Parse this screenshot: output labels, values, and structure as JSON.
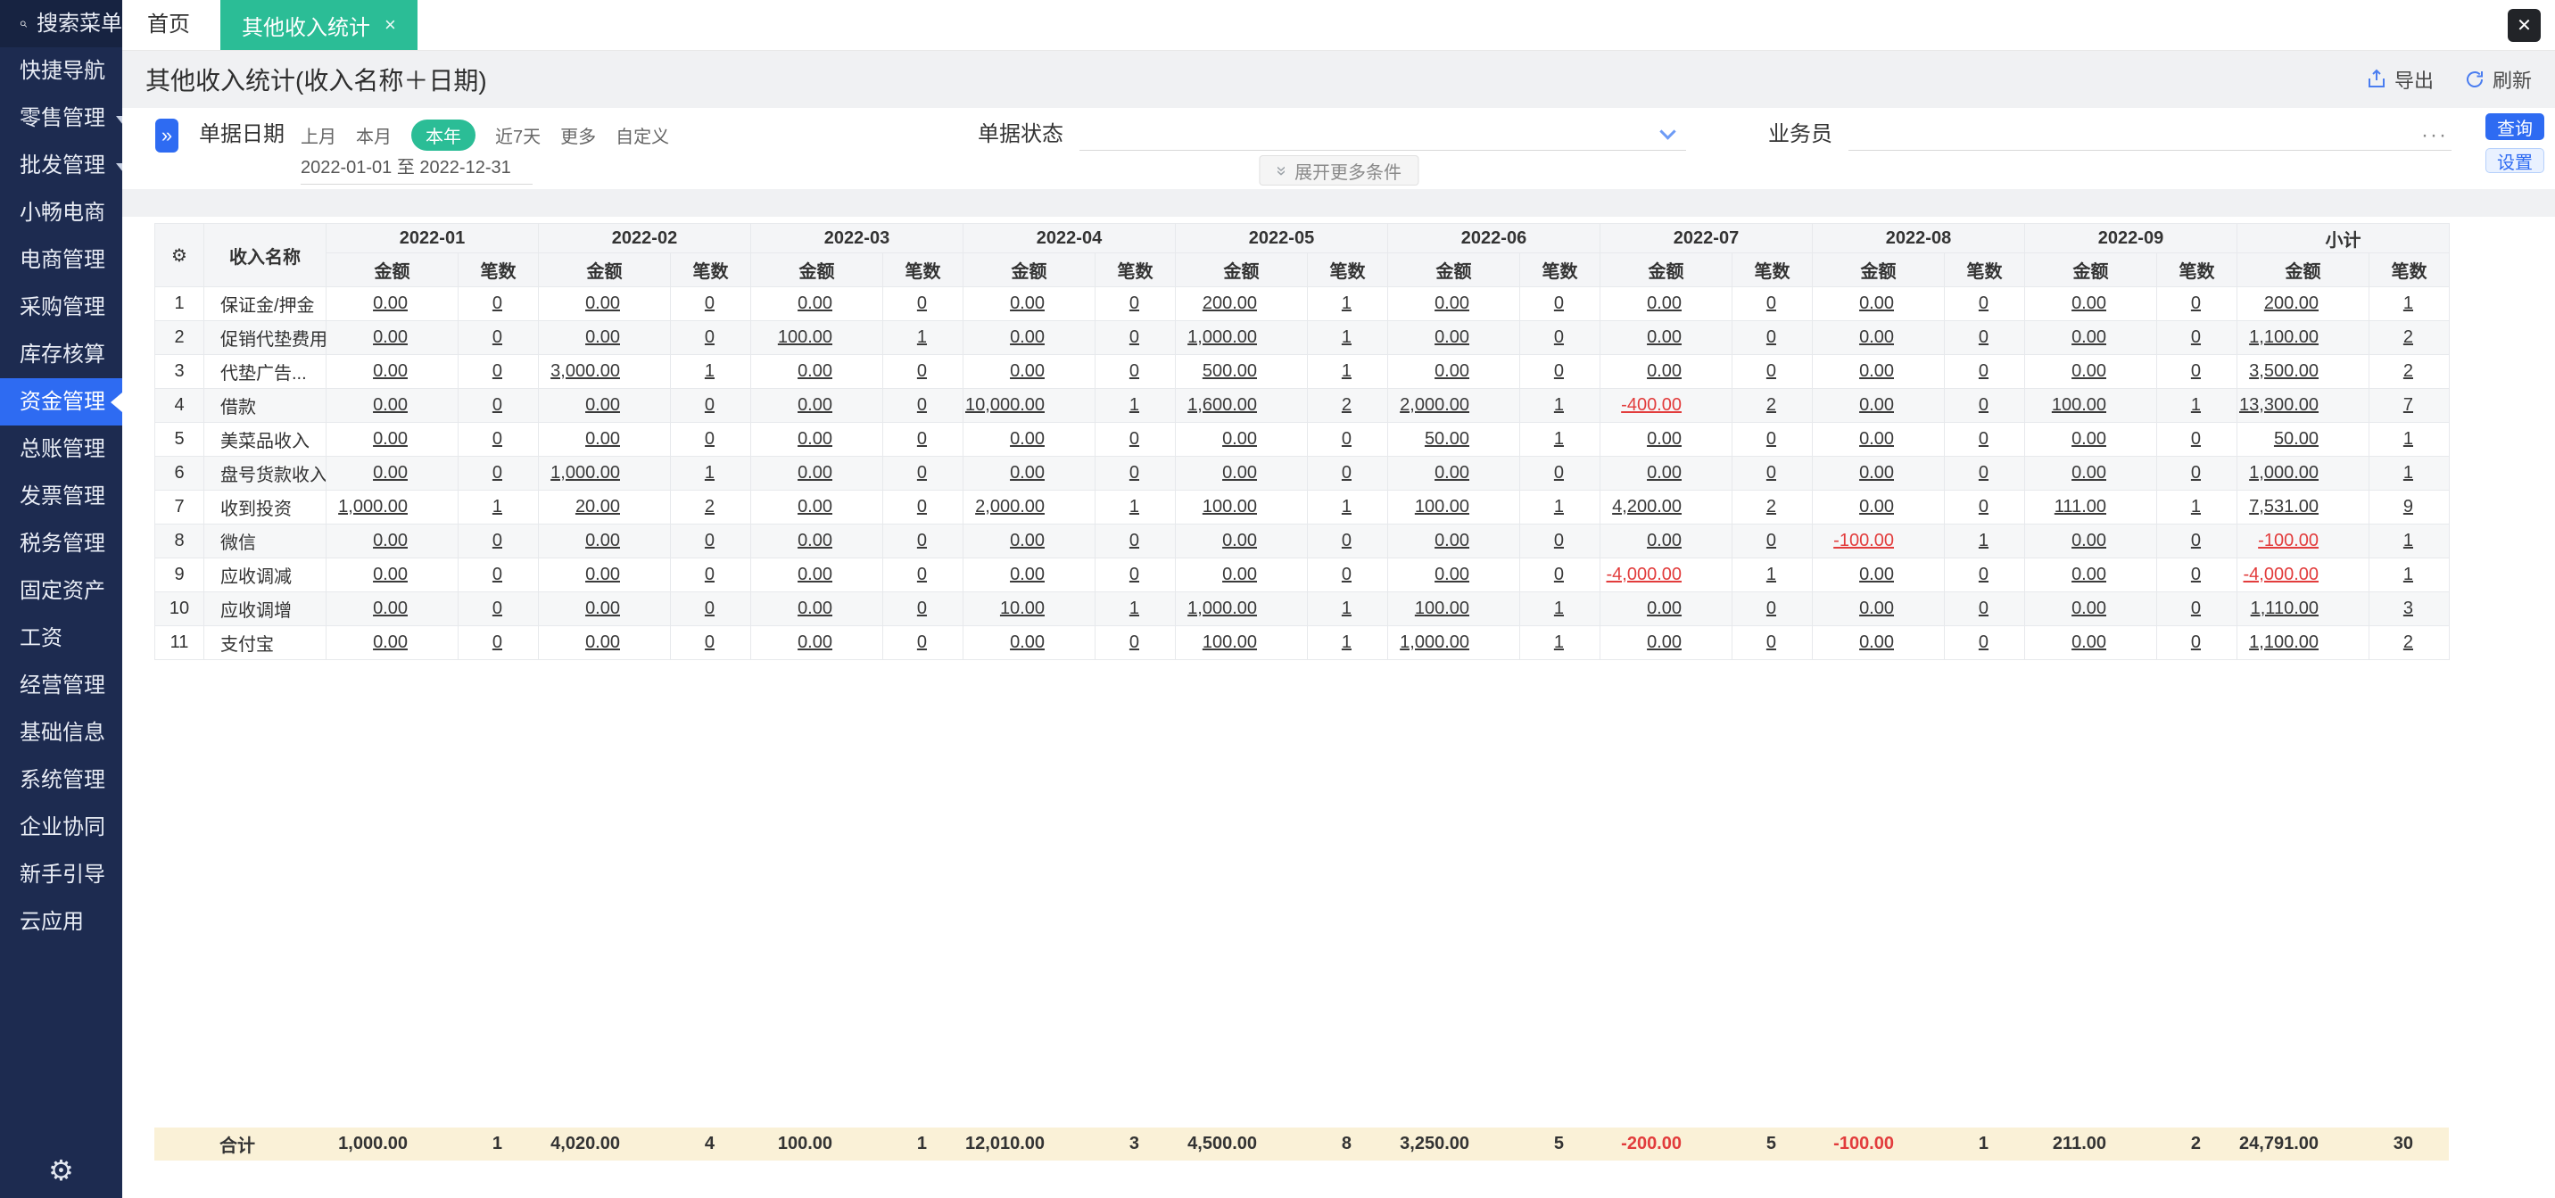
{
  "window": {
    "close_icon": "✕"
  },
  "sidebar": {
    "search_label": "搜索菜单",
    "gear_icon": "⚙",
    "items": [
      {
        "label": "快捷导航"
      },
      {
        "label": "零售管理",
        "arrow": true
      },
      {
        "label": "批发管理",
        "arrow": true
      },
      {
        "label": "小畅电商"
      },
      {
        "label": "电商管理"
      },
      {
        "label": "采购管理"
      },
      {
        "label": "库存核算"
      },
      {
        "label": "资金管理",
        "active": true
      },
      {
        "label": "总账管理"
      },
      {
        "label": "发票管理"
      },
      {
        "label": "税务管理"
      },
      {
        "label": "固定资产"
      },
      {
        "label": "工资"
      },
      {
        "label": "经营管理"
      },
      {
        "label": "基础信息"
      },
      {
        "label": "系统管理"
      },
      {
        "label": "企业协同"
      },
      {
        "label": "新手引导"
      },
      {
        "label": "云应用"
      }
    ]
  },
  "tabs": {
    "home_label": "首页",
    "active_label": "其他收入统计",
    "active_close": "×"
  },
  "page": {
    "title": "其他收入统计(收入名称＋日期)",
    "export_label": "导出",
    "refresh_label": "刷新"
  },
  "filters": {
    "collapse_icon": "»",
    "date_label": "单据日期",
    "date_options": [
      "上月",
      "本月",
      "本年",
      "近7天",
      "更多",
      "自定义"
    ],
    "date_selected": "本年",
    "date_range": "2022-01-01 至 2022-12-31",
    "status_label": "单据状态",
    "salesman_label": "业务员",
    "ellipsis": "···",
    "more_icon": "»",
    "more_label": "展开更多条件",
    "query_label": "查询",
    "settings_label": "设置",
    "accent_color": "#2e6bf2",
    "selected_pill_color": "#2bbd96"
  },
  "table": {
    "gear_icon": "⚙",
    "name_header": "收入名称",
    "month_headers": [
      "2022-01",
      "2022-02",
      "2022-03",
      "2022-04",
      "2022-05",
      "2022-06",
      "2022-07",
      "2022-08",
      "2022-09",
      "小计"
    ],
    "sub_headers": [
      "金额",
      "笔数"
    ],
    "negative_color": "#e23c3c",
    "rows": [
      {
        "no": "1",
        "name": "保证金/押金",
        "cells": [
          [
            "0.00",
            "0"
          ],
          [
            "0.00",
            "0"
          ],
          [
            "0.00",
            "0"
          ],
          [
            "0.00",
            "0"
          ],
          [
            "200.00",
            "1"
          ],
          [
            "0.00",
            "0"
          ],
          [
            "0.00",
            "0"
          ],
          [
            "0.00",
            "0"
          ],
          [
            "0.00",
            "0"
          ],
          [
            "200.00",
            "1"
          ]
        ]
      },
      {
        "no": "2",
        "name": "促销代垫费用",
        "cells": [
          [
            "0.00",
            "0"
          ],
          [
            "0.00",
            "0"
          ],
          [
            "100.00",
            "1"
          ],
          [
            "0.00",
            "0"
          ],
          [
            "1,000.00",
            "1"
          ],
          [
            "0.00",
            "0"
          ],
          [
            "0.00",
            "0"
          ],
          [
            "0.00",
            "0"
          ],
          [
            "0.00",
            "0"
          ],
          [
            "1,100.00",
            "2"
          ]
        ]
      },
      {
        "no": "3",
        "name": "代垫广告...",
        "cells": [
          [
            "0.00",
            "0"
          ],
          [
            "3,000.00",
            "1"
          ],
          [
            "0.00",
            "0"
          ],
          [
            "0.00",
            "0"
          ],
          [
            "500.00",
            "1"
          ],
          [
            "0.00",
            "0"
          ],
          [
            "0.00",
            "0"
          ],
          [
            "0.00",
            "0"
          ],
          [
            "0.00",
            "0"
          ],
          [
            "3,500.00",
            "2"
          ]
        ]
      },
      {
        "no": "4",
        "name": "借款",
        "cells": [
          [
            "0.00",
            "0"
          ],
          [
            "0.00",
            "0"
          ],
          [
            "0.00",
            "0"
          ],
          [
            "10,000.00",
            "1"
          ],
          [
            "1,600.00",
            "2"
          ],
          [
            "2,000.00",
            "1"
          ],
          [
            "-400.00",
            "2"
          ],
          [
            "0.00",
            "0"
          ],
          [
            "100.00",
            "1"
          ],
          [
            "13,300.00",
            "7"
          ]
        ]
      },
      {
        "no": "5",
        "name": "美菜品收入",
        "cells": [
          [
            "0.00",
            "0"
          ],
          [
            "0.00",
            "0"
          ],
          [
            "0.00",
            "0"
          ],
          [
            "0.00",
            "0"
          ],
          [
            "0.00",
            "0"
          ],
          [
            "50.00",
            "1"
          ],
          [
            "0.00",
            "0"
          ],
          [
            "0.00",
            "0"
          ],
          [
            "0.00",
            "0"
          ],
          [
            "50.00",
            "1"
          ]
        ]
      },
      {
        "no": "6",
        "name": "盘号货款收入",
        "cells": [
          [
            "0.00",
            "0"
          ],
          [
            "1,000.00",
            "1"
          ],
          [
            "0.00",
            "0"
          ],
          [
            "0.00",
            "0"
          ],
          [
            "0.00",
            "0"
          ],
          [
            "0.00",
            "0"
          ],
          [
            "0.00",
            "0"
          ],
          [
            "0.00",
            "0"
          ],
          [
            "0.00",
            "0"
          ],
          [
            "1,000.00",
            "1"
          ]
        ]
      },
      {
        "no": "7",
        "name": "收到投资",
        "cells": [
          [
            "1,000.00",
            "1"
          ],
          [
            "20.00",
            "2"
          ],
          [
            "0.00",
            "0"
          ],
          [
            "2,000.00",
            "1"
          ],
          [
            "100.00",
            "1"
          ],
          [
            "100.00",
            "1"
          ],
          [
            "4,200.00",
            "2"
          ],
          [
            "0.00",
            "0"
          ],
          [
            "111.00",
            "1"
          ],
          [
            "7,531.00",
            "9"
          ]
        ]
      },
      {
        "no": "8",
        "name": "微信",
        "cells": [
          [
            "0.00",
            "0"
          ],
          [
            "0.00",
            "0"
          ],
          [
            "0.00",
            "0"
          ],
          [
            "0.00",
            "0"
          ],
          [
            "0.00",
            "0"
          ],
          [
            "0.00",
            "0"
          ],
          [
            "0.00",
            "0"
          ],
          [
            "-100.00",
            "1"
          ],
          [
            "0.00",
            "0"
          ],
          [
            "-100.00",
            "1"
          ]
        ]
      },
      {
        "no": "9",
        "name": "应收调减",
        "cells": [
          [
            "0.00",
            "0"
          ],
          [
            "0.00",
            "0"
          ],
          [
            "0.00",
            "0"
          ],
          [
            "0.00",
            "0"
          ],
          [
            "0.00",
            "0"
          ],
          [
            "0.00",
            "0"
          ],
          [
            "-4,000.00",
            "1"
          ],
          [
            "0.00",
            "0"
          ],
          [
            "0.00",
            "0"
          ],
          [
            "-4,000.00",
            "1"
          ]
        ]
      },
      {
        "no": "10",
        "name": "应收调增",
        "cells": [
          [
            "0.00",
            "0"
          ],
          [
            "0.00",
            "0"
          ],
          [
            "0.00",
            "0"
          ],
          [
            "10.00",
            "1"
          ],
          [
            "1,000.00",
            "1"
          ],
          [
            "100.00",
            "1"
          ],
          [
            "0.00",
            "0"
          ],
          [
            "0.00",
            "0"
          ],
          [
            "0.00",
            "0"
          ],
          [
            "1,110.00",
            "3"
          ]
        ]
      },
      {
        "no": "11",
        "name": "支付宝",
        "cells": [
          [
            "0.00",
            "0"
          ],
          [
            "0.00",
            "0"
          ],
          [
            "0.00",
            "0"
          ],
          [
            "0.00",
            "0"
          ],
          [
            "100.00",
            "1"
          ],
          [
            "1,000.00",
            "1"
          ],
          [
            "0.00",
            "0"
          ],
          [
            "0.00",
            "0"
          ],
          [
            "0.00",
            "0"
          ],
          [
            "1,100.00",
            "2"
          ]
        ]
      }
    ],
    "footer": {
      "label": "合计",
      "cells": [
        [
          "1,000.00",
          "1"
        ],
        [
          "4,020.00",
          "4"
        ],
        [
          "100.00",
          "1"
        ],
        [
          "12,010.00",
          "3"
        ],
        [
          "4,500.00",
          "8"
        ],
        [
          "3,250.00",
          "5"
        ],
        [
          "-200.00",
          "5"
        ],
        [
          "-100.00",
          "1"
        ],
        [
          "211.00",
          "2"
        ],
        [
          "24,791.00",
          "30"
        ]
      ]
    }
  }
}
